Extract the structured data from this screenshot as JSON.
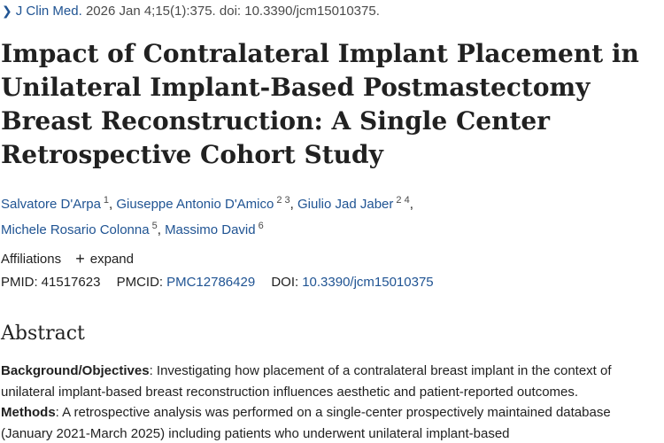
{
  "citation": {
    "journal": "J Clin Med.",
    "details": "2026 Jan 4;15(1):375. doi: 10.3390/jcm15010375."
  },
  "article": {
    "title": "Impact of Contralateral Implant Placement in Unilateral Implant-Based Postmastectomy Breast Reconstruction: A Single Center Retrospective Cohort Study"
  },
  "authors": [
    {
      "name": "Salvatore D'Arpa",
      "affiliations": "1"
    },
    {
      "name": "Giuseppe Antonio D'Amico",
      "affiliations": "2 3"
    },
    {
      "name": "Giulio Jad Jaber",
      "affiliations": "2 4"
    },
    {
      "name": "Michele Rosario Colonna",
      "affiliations": "5"
    },
    {
      "name": "Massimo David",
      "affiliations": "6"
    }
  ],
  "affiliations": {
    "label": "Affiliations",
    "expand_label": "expand"
  },
  "identifiers": {
    "pmid_label": "PMID:",
    "pmid": "41517623",
    "pmcid_label": "PMCID:",
    "pmcid": "PMC12786429",
    "doi_label": "DOI:",
    "doi": "10.3390/jcm15010375"
  },
  "abstract": {
    "heading": "Abstract",
    "sections": [
      {
        "label": "Background/Objectives",
        "text": ": Investigating how placement of a contralateral breast implant in the context of unilateral implant-based breast reconstruction influences aesthetic and patient-reported outcomes."
      },
      {
        "label": "Methods",
        "text": ": A retrospective analysis was performed on a single-center prospectively maintained database (January 2021-March 2025) including patients who underwent unilateral implant-based"
      }
    ]
  },
  "colors": {
    "link": "#205493",
    "text": "#212121"
  }
}
